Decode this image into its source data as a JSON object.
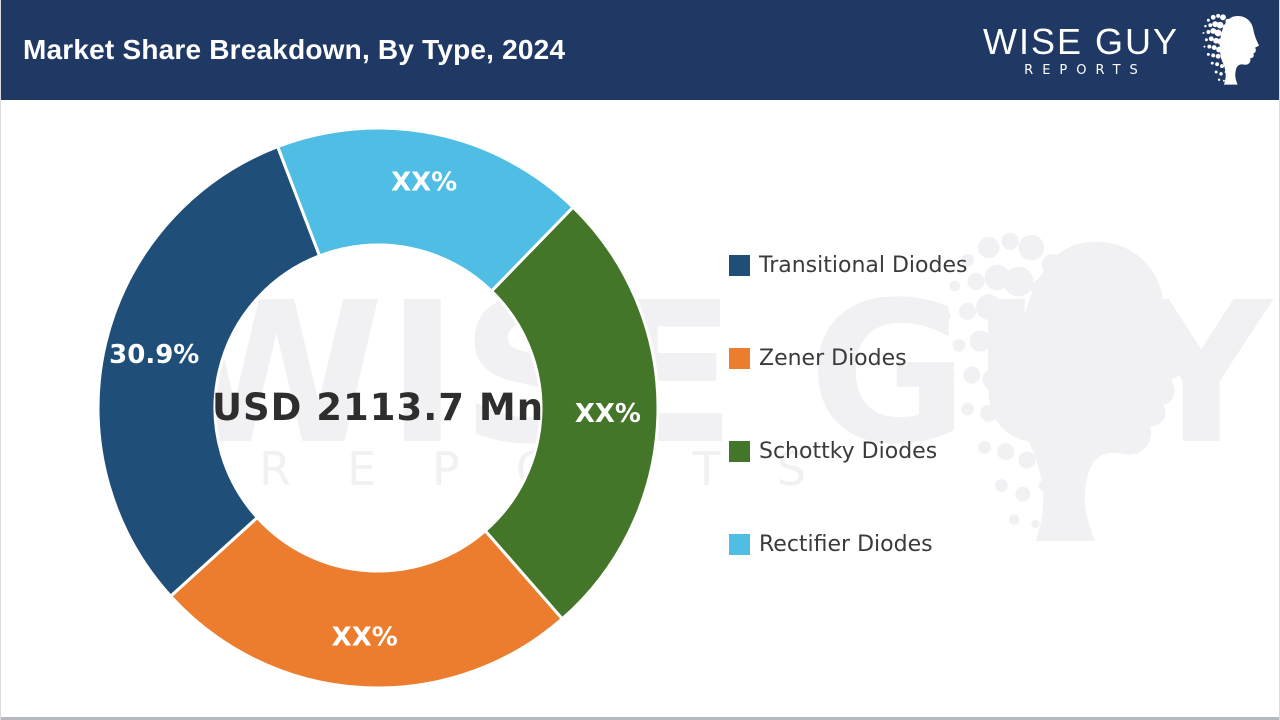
{
  "header": {
    "title": "Market Share Breakdown, By Type, 2024",
    "bg_color": "#1F3864"
  },
  "logo": {
    "line1": "WISE GUY",
    "line2": "REPORTS"
  },
  "watermark": {
    "line1": "WISE GUY",
    "line2": "REPORTS"
  },
  "chart_data": {
    "type": "pie",
    "donut": true,
    "title": "Market Share Breakdown, By Type, 2024",
    "center_label": "USD 2113.7 Mn",
    "start_angle_deg": 111,
    "direction": "counterclockwise",
    "legend_position": "right",
    "segments": [
      {
        "name": "Transitional Diodes",
        "value": 30.9,
        "label": "30.9%",
        "color": "#1F4E78"
      },
      {
        "name": "Zener Diodes",
        "value": 24.7,
        "label": "XX%",
        "color": "#EC7D2E"
      },
      {
        "name": "Schottky Diodes",
        "value": 26.3,
        "label": "XX%",
        "color": "#437628"
      },
      {
        "name": "Rectifier Diodes",
        "value": 18.1,
        "label": "XX%",
        "color": "#4FBDE4"
      }
    ]
  }
}
